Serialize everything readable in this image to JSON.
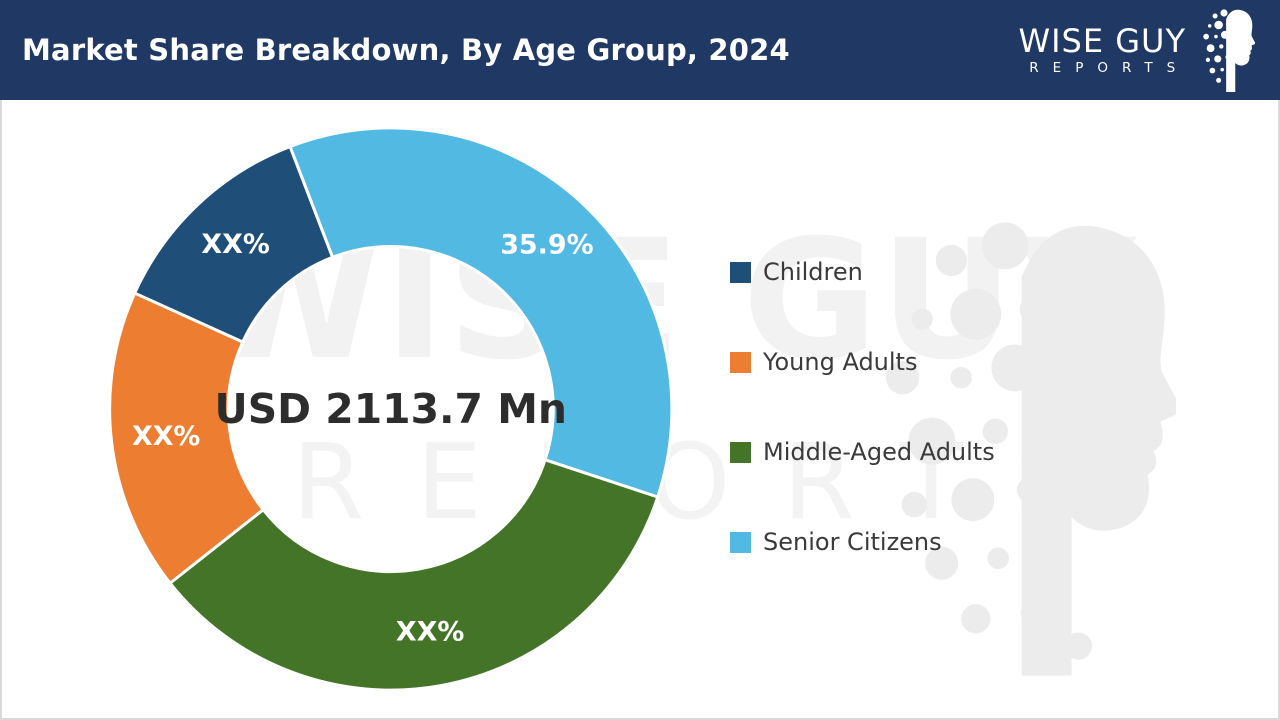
{
  "header": {
    "title": "Market Share Breakdown, By Age Group, 2024",
    "logo": {
      "wordmark": "WISE GUY",
      "subtitle": "REPORTS",
      "face_icon": "dotted-head-profile-icon"
    }
  },
  "watermark": {
    "wordmark": "WISE GUY",
    "subtitle": "REPORTS",
    "face_icon": "dotted-head-profile-icon"
  },
  "chart_data": {
    "type": "pie",
    "subtype": "donut",
    "title": "Market Share Breakdown, By Age Group, 2024",
    "center_label": "USD 2113.7 Mn",
    "legend_position": "right",
    "grid": false,
    "start_angle_deg": -21,
    "note": "Only the Senior Citizens slice shows a numeric label; other slices are masked as XX%. Slice values are estimated from arc angles.",
    "segments": [
      {
        "label": "Children",
        "display_label": "XX%",
        "value_pct": 12.4,
        "color": "#1f4e79"
      },
      {
        "label": "Young Adults",
        "display_label": "XX%",
        "value_pct": 17.4,
        "color": "#ed7d31"
      },
      {
        "label": "Middle-Aged Adults",
        "display_label": "XX%",
        "value_pct": 34.3,
        "color": "#447428"
      },
      {
        "label": "Senior Citizens",
        "display_label": "35.9%",
        "value_pct": 35.9,
        "color": "#52b9e2"
      }
    ]
  },
  "colors": {
    "header_bg": "#1f3864",
    "page_border": "#d9d9d9",
    "center_text": "#2d2d2d",
    "legend_text": "#3a3a3a",
    "watermark": "#f2f2f2",
    "slice_stroke": "#ffffff"
  }
}
